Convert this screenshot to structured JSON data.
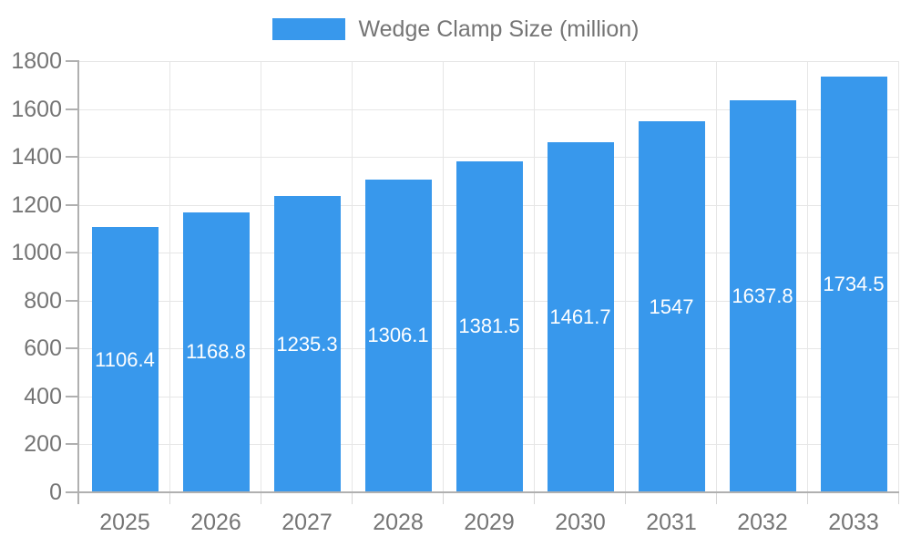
{
  "chart_data": {
    "type": "bar",
    "title": "",
    "legend": "Wedge Clamp Size (million)",
    "legend_position": "top-center",
    "categories": [
      "2025",
      "2026",
      "2027",
      "2028",
      "2029",
      "2030",
      "2031",
      "2032",
      "2033"
    ],
    "values": [
      1106.4,
      1168.8,
      1235.3,
      1306.1,
      1381.5,
      1461.7,
      1547,
      1637.8,
      1734.5
    ],
    "value_labels": [
      "1106.4",
      "1168.8",
      "1235.3",
      "1306.1",
      "1381.5",
      "1461.7",
      "1547",
      "1637.8",
      "1734.5"
    ],
    "xlabel": "",
    "ylabel": "",
    "ylim": [
      0,
      1800
    ],
    "ytick_step": 200,
    "ytick_labels": [
      "0",
      "200",
      "400",
      "600",
      "800",
      "1000",
      "1200",
      "1400",
      "1600",
      "1800"
    ],
    "grid": true,
    "colors": {
      "bar": "#3898ec",
      "grid": "#e6e6e6",
      "axis": "#b0b0b0",
      "boundary_tick": "#d6d6d6",
      "axis_text": "#757575",
      "bar_label_text": "#ffffff",
      "background": "#ffffff"
    }
  }
}
